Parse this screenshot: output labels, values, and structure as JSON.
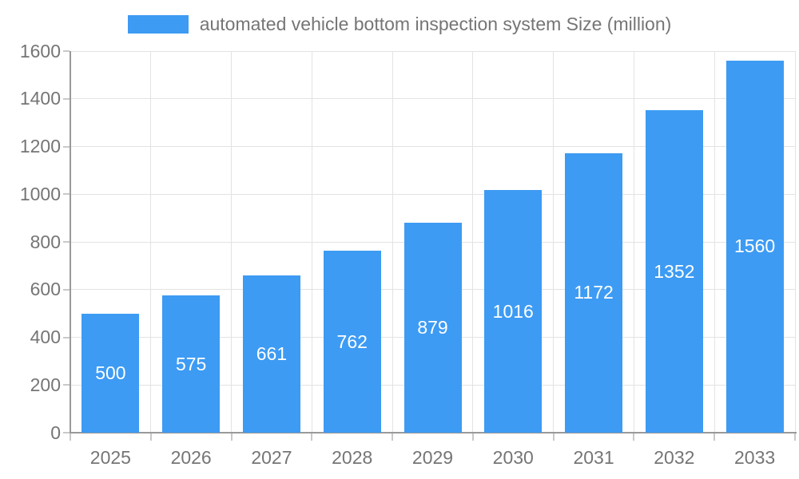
{
  "chart_data": {
    "type": "bar",
    "title": "automated vehicle bottom inspection system Size (million)",
    "categories": [
      "2025",
      "2026",
      "2027",
      "2028",
      "2029",
      "2030",
      "2031",
      "2032",
      "2033"
    ],
    "series": [
      {
        "name": "automated vehicle bottom inspection system Size (million)",
        "values": [
          500,
          575,
          661,
          762,
          879,
          1016,
          1172,
          1352,
          1560
        ]
      }
    ],
    "xlabel": "",
    "ylabel": "",
    "ylim": [
      0,
      1600
    ],
    "ytick_step": 200,
    "ytick_labels": [
      "0",
      "200",
      "400",
      "600",
      "800",
      "1000",
      "1200",
      "1400",
      "1600"
    ],
    "grid": true,
    "legend_position": "top",
    "value_labels_shown_inside_bars": true,
    "colors": {
      "bar": "#3d9bf3",
      "value_label_text": "#ffffff",
      "axis_text": "#757575",
      "legend_text": "#757575",
      "gridline": "#e3e3e3",
      "axis_line": "#999999",
      "tick": "#c9c9c9",
      "background": "#ffffff"
    }
  }
}
